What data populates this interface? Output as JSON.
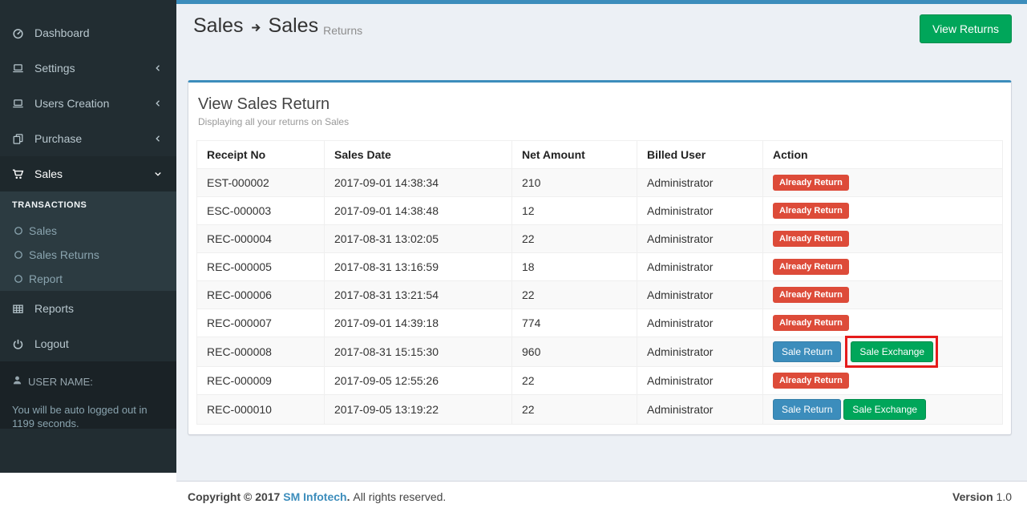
{
  "colors": {
    "topbar_blue": "#3c8dbc",
    "sidebar_bg": "#222d32",
    "sidebar_active_bg": "#1e282c",
    "submenu_bg": "#2c3b41",
    "user_block_bg": "#1a2226",
    "content_bg": "#ecf0f5",
    "success_green": "#00a65a",
    "danger_red": "#dd4b39",
    "primary_blue": "#3c8dbc",
    "highlight_red": "#e51b1b"
  },
  "sidebar": {
    "menu": [
      {
        "label": "Dashboard",
        "icon": "dashboard-icon"
      },
      {
        "label": "Settings",
        "icon": "laptop-icon",
        "chevron": "left"
      },
      {
        "label": "Users Creation",
        "icon": "laptop-icon",
        "chevron": "left"
      },
      {
        "label": "Purchase",
        "icon": "copy-icon",
        "chevron": "left"
      },
      {
        "label": "Sales",
        "icon": "cart-icon",
        "chevron": "down",
        "active": true
      }
    ],
    "submenu_header": "TRANSACTIONS",
    "submenu": [
      {
        "label": "Sales"
      },
      {
        "label": "Sales Returns"
      },
      {
        "label": "Report"
      }
    ],
    "menu_bottom": [
      {
        "label": "Reports",
        "icon": "table-icon"
      },
      {
        "label": "Logout",
        "icon": "power-icon"
      }
    ],
    "user_label": "USER NAME:",
    "auto_logout_line1": "You will be auto logged out in",
    "auto_logout_line2": "1199 seconds."
  },
  "header": {
    "section": "Sales",
    "page": "Sales",
    "page_small": "Returns",
    "view_returns_button": "View Returns"
  },
  "panel": {
    "title": "View Sales Return",
    "subtitle": "Displaying all your returns on Sales"
  },
  "table": {
    "columns": [
      "Receipt No",
      "Sales Date",
      "Net Amount",
      "Billed User",
      "Action"
    ],
    "action_labels": {
      "already_return": "Already Return",
      "sale_return": "Sale Return",
      "sale_exchange": "Sale Exchange"
    },
    "rows": [
      {
        "receipt_no": "EST-000002",
        "sales_date": "2017-09-01 14:38:34",
        "net_amount": "210",
        "billed_user": "Administrator",
        "actions": [
          {
            "type": "already_return"
          }
        ]
      },
      {
        "receipt_no": "ESC-000003",
        "sales_date": "2017-09-01 14:38:48",
        "net_amount": "12",
        "billed_user": "Administrator",
        "actions": [
          {
            "type": "already_return"
          }
        ]
      },
      {
        "receipt_no": "REC-000004",
        "sales_date": "2017-08-31 13:02:05",
        "net_amount": "22",
        "billed_user": "Administrator",
        "actions": [
          {
            "type": "already_return"
          }
        ]
      },
      {
        "receipt_no": "REC-000005",
        "sales_date": "2017-08-31 13:16:59",
        "net_amount": "18",
        "billed_user": "Administrator",
        "actions": [
          {
            "type": "already_return"
          }
        ]
      },
      {
        "receipt_no": "REC-000006",
        "sales_date": "2017-08-31 13:21:54",
        "net_amount": "22",
        "billed_user": "Administrator",
        "actions": [
          {
            "type": "already_return"
          }
        ]
      },
      {
        "receipt_no": "REC-000007",
        "sales_date": "2017-09-01 14:39:18",
        "net_amount": "774",
        "billed_user": "Administrator",
        "actions": [
          {
            "type": "already_return"
          }
        ]
      },
      {
        "receipt_no": "REC-000008",
        "sales_date": "2017-08-31 15:15:30",
        "net_amount": "960",
        "billed_user": "Administrator",
        "actions": [
          {
            "type": "sale_return"
          },
          {
            "type": "sale_exchange",
            "highlighted": true
          }
        ]
      },
      {
        "receipt_no": "REC-000009",
        "sales_date": "2017-09-05 12:55:26",
        "net_amount": "22",
        "billed_user": "Administrator",
        "actions": [
          {
            "type": "already_return"
          }
        ]
      },
      {
        "receipt_no": "REC-000010",
        "sales_date": "2017-09-05 13:19:22",
        "net_amount": "22",
        "billed_user": "Administrator",
        "actions": [
          {
            "type": "sale_return"
          },
          {
            "type": "sale_exchange"
          }
        ]
      }
    ]
  },
  "footer": {
    "copyright_bold": "Copyright © 2017",
    "company_link": "SM Infotech",
    "copyright_period": ".",
    "rights_text": "All rights reserved.",
    "version_label": "Version",
    "version_value": "1.0"
  }
}
